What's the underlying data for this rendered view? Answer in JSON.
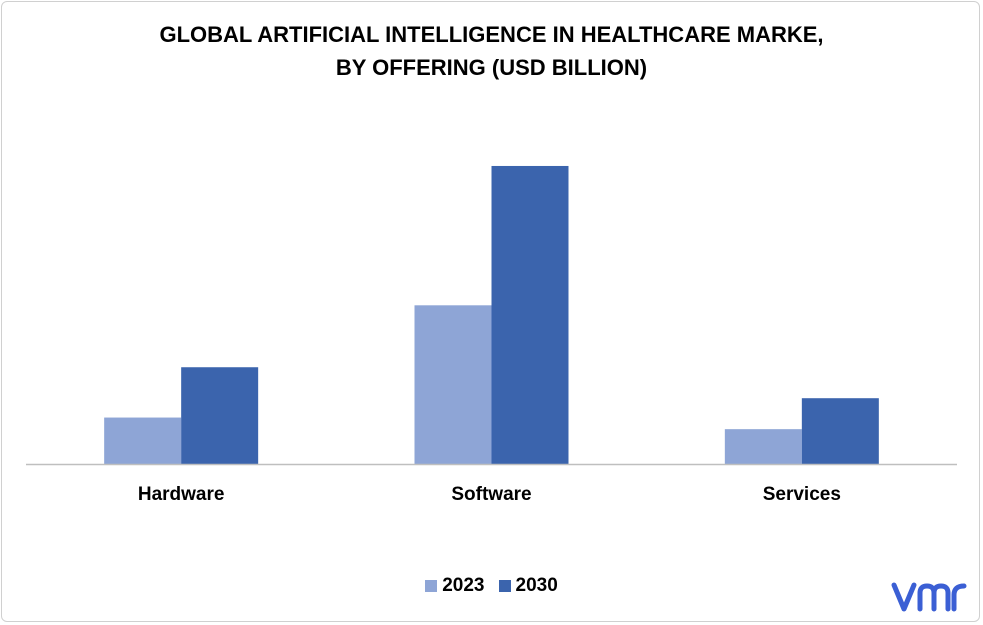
{
  "chart_data": {
    "type": "bar",
    "title_lines": [
      "GLOBAL ARTIFICIAL INTELLIGENCE IN HEALTHCARE MARKE,",
      "BY OFFERING (USD BILLION)"
    ],
    "categories": [
      "Hardware",
      "Software",
      "Services"
    ],
    "series": [
      {
        "name": "2023",
        "color": "#8EA5D6",
        "values": [
          2.4,
          8.2,
          1.8
        ]
      },
      {
        "name": "2030",
        "color": "#3B64AD",
        "values": [
          5.0,
          15.4,
          3.4
        ]
      }
    ],
    "ylim": [
      0,
      17
    ],
    "grid": false,
    "legend_position": "bottom"
  },
  "logo": {
    "name": "vmr-logo",
    "text": "vmr",
    "color": "#3B5FD4"
  }
}
